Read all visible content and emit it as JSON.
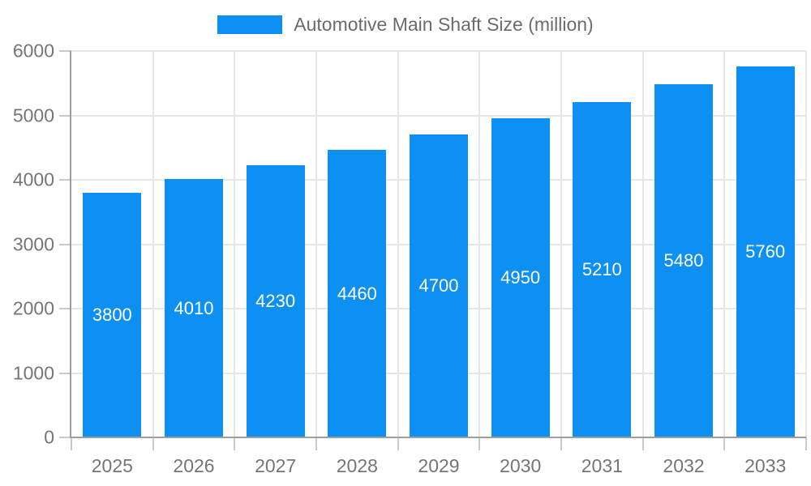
{
  "legend": {
    "label": "Automotive Main Shaft Size (million)"
  },
  "chart_data": {
    "type": "bar",
    "title": "",
    "xlabel": "",
    "ylabel": "",
    "categories": [
      "2025",
      "2026",
      "2027",
      "2028",
      "2029",
      "2030",
      "2031",
      "2032",
      "2033"
    ],
    "values": [
      3800,
      4010,
      4230,
      4460,
      4700,
      4950,
      5210,
      5480,
      5760
    ],
    "series": [
      {
        "name": "Automotive Main Shaft Size (million)",
        "values": [
          3800,
          4010,
          4230,
          4460,
          4700,
          4950,
          5210,
          5480,
          5760
        ]
      }
    ],
    "bar_value_labels": [
      "3800",
      "4010",
      "4230",
      "4460",
      "4700",
      "4950",
      "5210",
      "5480",
      "5760"
    ],
    "ylim": [
      0,
      6000
    ],
    "yticks": [
      0,
      1000,
      2000,
      3000,
      4000,
      5000,
      6000
    ],
    "grid": true,
    "legend_position": "top-center",
    "colors": {
      "bar": "#0D90F2",
      "bar_label": "#FFFFFF",
      "axis": "#9E9E9E",
      "grid": "#E6E6E6",
      "tick": "#C9C9C9",
      "text": "#757575",
      "legend_text": "#6B6B6B"
    }
  }
}
